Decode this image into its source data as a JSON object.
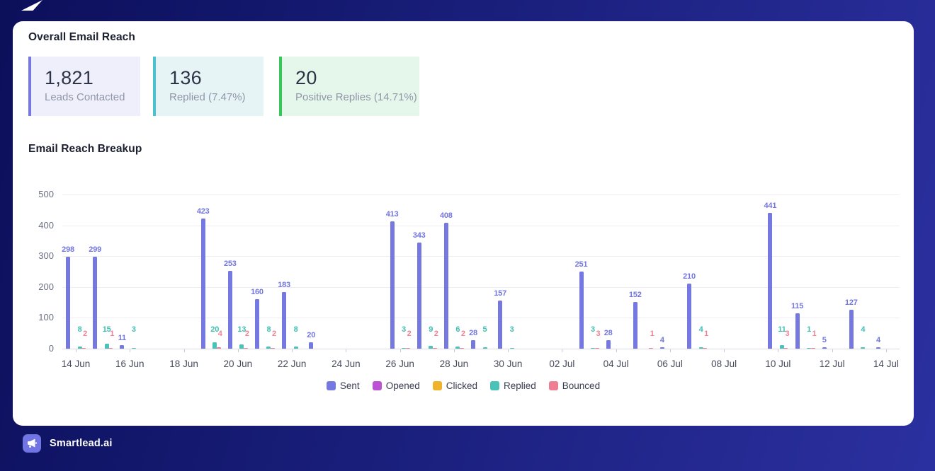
{
  "brand": {
    "name": "Smartlead.ai"
  },
  "overall": {
    "title": "Overall Email Reach",
    "stats": [
      {
        "value": "1,821",
        "label": "Leads Contacted",
        "bg": "#eeeffa",
        "accent": "#7678e1"
      },
      {
        "value": "136",
        "label": "Replied (7.47%)",
        "bg": "#e7f4f6",
        "accent": "#4dc1cc"
      },
      {
        "value": "20",
        "label": "Positive Replies (14.71%)",
        "bg": "#e5f7ea",
        "accent": "#38c65a"
      }
    ]
  },
  "breakup": {
    "title": "Email Reach Breakup"
  },
  "chart_data": {
    "type": "bar",
    "title": "Email Reach Breakup",
    "categories": [
      "14 Jun",
      "15 Jun",
      "16 Jun",
      "17 Jun",
      "18 Jun",
      "19 Jun",
      "20 Jun",
      "21 Jun",
      "22 Jun",
      "23 Jun",
      "24 Jun",
      "25 Jun",
      "26 Jun",
      "27 Jun",
      "28 Jun",
      "29 Jun",
      "30 Jun",
      "01 Jul",
      "02 Jul",
      "03 Jul",
      "04 Jul",
      "05 Jul",
      "06 Jul",
      "07 Jul",
      "08 Jul",
      "09 Jul",
      "10 Jul",
      "11 Jul",
      "12 Jul",
      "13 Jul",
      "14 Jul"
    ],
    "x_tick_labels": [
      "14 Jun",
      "16 Jun",
      "18 Jun",
      "20 Jun",
      "22 Jun",
      "24 Jun",
      "26 Jun",
      "28 Jun",
      "30 Jun",
      "02 Jul",
      "04 Jul",
      "06 Jul",
      "08 Jul",
      "10 Jul",
      "12 Jul"
    ],
    "series": [
      {
        "name": "Sent",
        "color": "#7678e1",
        "label_color": "#7276de",
        "values": [
          298,
          299,
          11,
          0,
          0,
          423,
          253,
          160,
          183,
          20,
          0,
          0,
          413,
          343,
          408,
          28,
          157,
          0,
          0,
          251,
          28,
          152,
          4,
          210,
          0,
          0,
          441,
          115,
          5,
          127,
          4
        ]
      },
      {
        "name": "Opened",
        "color": "#bb52d4",
        "label_color": "#bb52d4",
        "values": [
          0,
          0,
          0,
          0,
          0,
          0,
          0,
          0,
          0,
          0,
          0,
          0,
          0,
          0,
          0,
          0,
          0,
          0,
          0,
          0,
          0,
          0,
          0,
          0,
          0,
          0,
          0,
          0,
          0,
          0,
          0
        ]
      },
      {
        "name": "Clicked",
        "color": "#eeb22b",
        "label_color": "#eeb22b",
        "values": [
          0,
          0,
          0,
          0,
          0,
          0,
          0,
          0,
          0,
          0,
          0,
          0,
          0,
          0,
          0,
          0,
          0,
          0,
          0,
          0,
          0,
          0,
          0,
          0,
          0,
          0,
          0,
          0,
          0,
          0,
          0
        ]
      },
      {
        "name": "Replied",
        "color": "#4ac2b7",
        "label_color": "#3fc0b2",
        "values": [
          8,
          15,
          3,
          0,
          0,
          20,
          13,
          8,
          8,
          0,
          0,
          0,
          3,
          9,
          6,
          5,
          3,
          0,
          0,
          3,
          0,
          0,
          0,
          4,
          0,
          0,
          11,
          1,
          0,
          4,
          0
        ]
      },
      {
        "name": "Bounced",
        "color": "#ee7e92",
        "label_color": "#f08398",
        "values": [
          2,
          1,
          0,
          0,
          0,
          4,
          2,
          2,
          0,
          0,
          0,
          0,
          2,
          2,
          2,
          0,
          0,
          0,
          0,
          3,
          0,
          1,
          0,
          1,
          0,
          0,
          3,
          1,
          0,
          0,
          0
        ]
      }
    ],
    "ylim": [
      0,
      500
    ],
    "yticks": [
      0,
      100,
      200,
      300,
      400,
      500
    ],
    "xlabel": "",
    "ylabel": "",
    "grid": true,
    "legend_position": "bottom"
  }
}
